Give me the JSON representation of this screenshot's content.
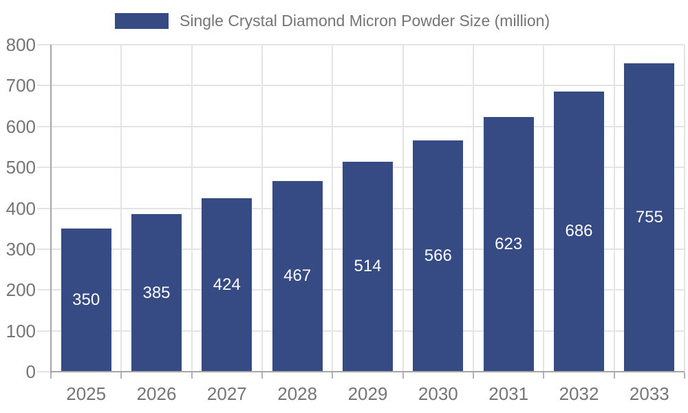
{
  "legend": {
    "label": "Single Crystal Diamond Micron Powder Size (million)",
    "swatch_color": "#364a84"
  },
  "chart_data": {
    "type": "bar",
    "title": "Single Crystal Diamond Micron Powder Size (million)",
    "categories": [
      "2025",
      "2026",
      "2027",
      "2028",
      "2029",
      "2030",
      "2031",
      "2032",
      "2033"
    ],
    "values": [
      350,
      385,
      424,
      467,
      514,
      566,
      623,
      686,
      755
    ],
    "xlabel": "",
    "ylabel": "",
    "ylim": [
      0,
      800
    ],
    "ytick_interval": 100,
    "ytick_labels": [
      "0",
      "100",
      "200",
      "300",
      "400",
      "500",
      "600",
      "700",
      "800"
    ],
    "grid": true,
    "legend_position": "top",
    "bar_color": "#364a84",
    "value_label_color": "#ffffff",
    "axis_text_color": "#757575",
    "gridline_color": "#e4e4e4",
    "axis_line_color": "#a6a6a6",
    "tick_color": "#b3b3b3"
  }
}
